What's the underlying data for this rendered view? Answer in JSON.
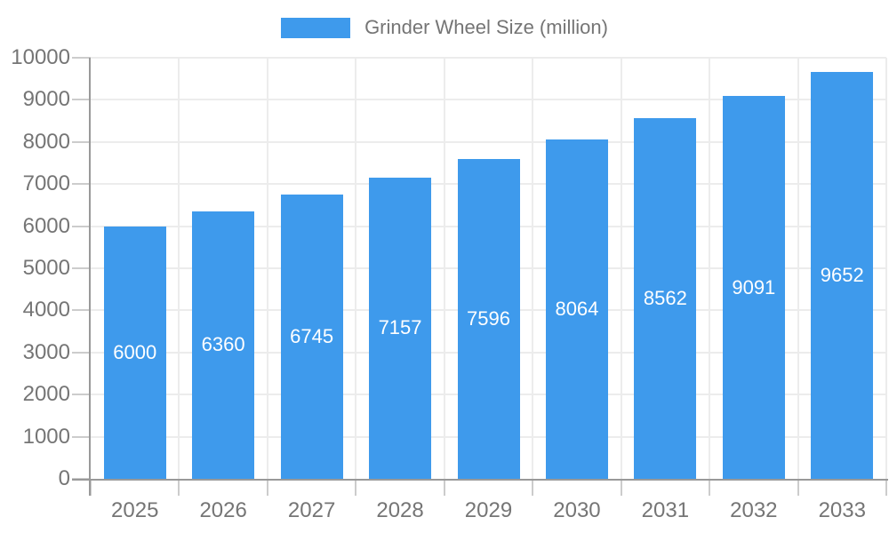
{
  "legend": {
    "label": "Grinder Wheel Size (million)"
  },
  "chart_data": {
    "type": "bar",
    "title": "Grinder Wheel Size (million)",
    "categories": [
      "2025",
      "2026",
      "2027",
      "2028",
      "2029",
      "2030",
      "2031",
      "2032",
      "2033"
    ],
    "values": [
      6000,
      6360,
      6745,
      7157,
      7596,
      8064,
      8562,
      9091,
      9652
    ],
    "value_labels": [
      "6000",
      "6360",
      "6745",
      "7157",
      "7596",
      "8064",
      "8562",
      "9091",
      "9652"
    ],
    "xlabel": "",
    "ylabel": "",
    "ylim": [
      0,
      10000
    ],
    "y_ticks": [
      0,
      1000,
      2000,
      3000,
      4000,
      5000,
      6000,
      7000,
      8000,
      9000,
      10000
    ],
    "y_tick_labels": [
      "0",
      "1000",
      "2000",
      "3000",
      "4000",
      "5000",
      "6000",
      "7000",
      "8000",
      "9000",
      "10000"
    ],
    "grid": true,
    "legend_position": "top-center",
    "value_labels_inside_bars": true,
    "colors": {
      "bar": "#3E9AEC",
      "value_label": "#FFFFFF",
      "axis_label": "#757575",
      "axis_line": "#999999",
      "gridline": "#ECECEC",
      "tick": "#CCCCCC",
      "background": "#FFFFFF"
    }
  }
}
